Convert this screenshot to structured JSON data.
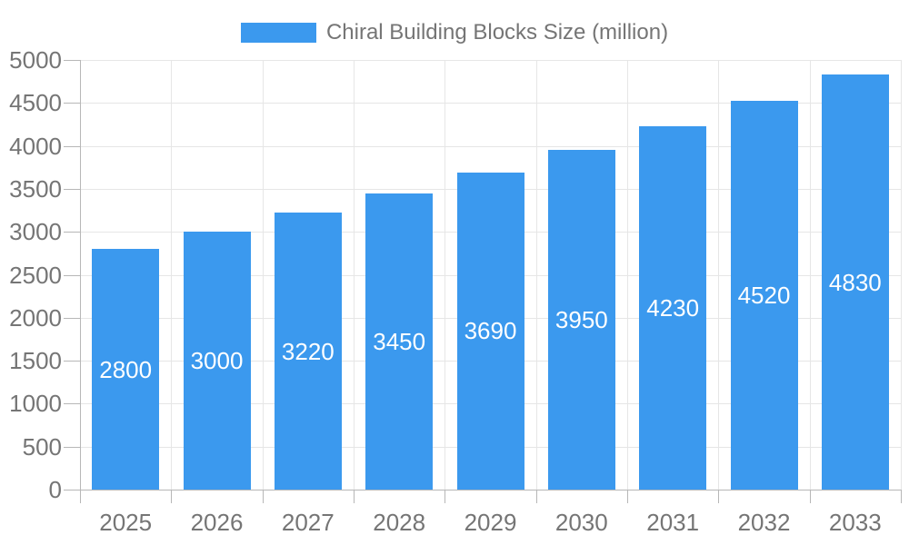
{
  "chart_data": {
    "type": "bar",
    "title": "Chiral Building Blocks Size (million)",
    "categories": [
      "2025",
      "2026",
      "2027",
      "2028",
      "2029",
      "2030",
      "2031",
      "2032",
      "2033"
    ],
    "values": [
      2800,
      3000,
      3220,
      3450,
      3690,
      3950,
      4230,
      4520,
      4830
    ],
    "value_labels": [
      "2800",
      "3000",
      "3220",
      "3450",
      "3690",
      "3950",
      "4230",
      "4520",
      "4830"
    ],
    "yticks": [
      "0",
      "500",
      "1000",
      "1500",
      "2000",
      "2500",
      "3000",
      "3500",
      "4000",
      "4500",
      "5000"
    ],
    "ylim": [
      0,
      5000
    ],
    "ytick_step": 500,
    "xlabel": "",
    "ylabel": "",
    "grid": true,
    "legend_position": "top",
    "colors": {
      "bar": "#3b99ee",
      "value_label": "#ffffff",
      "axis_text": "#757575",
      "legend_text": "#757575",
      "gridline": "#e6e6e6",
      "axis_line": "#b7b7b7",
      "background": "#ffffff"
    }
  }
}
